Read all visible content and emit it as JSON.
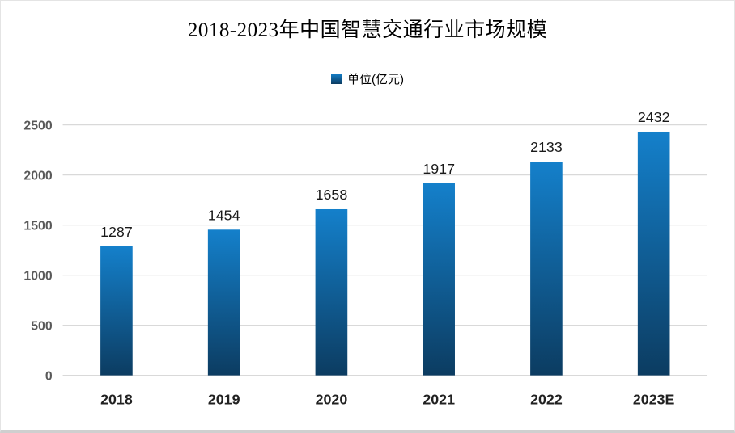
{
  "chart_data": {
    "type": "bar",
    "title": "2018-2023年中国智慧交通行业市场规模",
    "legend": "单位(亿元)",
    "legend_position": "top-center",
    "categories": [
      "2018",
      "2019",
      "2020",
      "2021",
      "2022",
      "2023E"
    ],
    "values": [
      1287,
      1454,
      1658,
      1917,
      2133,
      2432
    ],
    "xlabel": "",
    "ylabel": "",
    "ylim": [
      0,
      2500
    ],
    "yticks": [
      0,
      500,
      1000,
      1500,
      2000,
      2500
    ],
    "grid": true,
    "colors": {
      "bar_top": "#1480CB",
      "bar_bottom": "#0C3C61",
      "gridline": "#D9D9D9",
      "y_tick_label": "#595959",
      "x_tick_label": "#212121",
      "value_label": "#1A1A1A",
      "title": "#000000"
    }
  }
}
